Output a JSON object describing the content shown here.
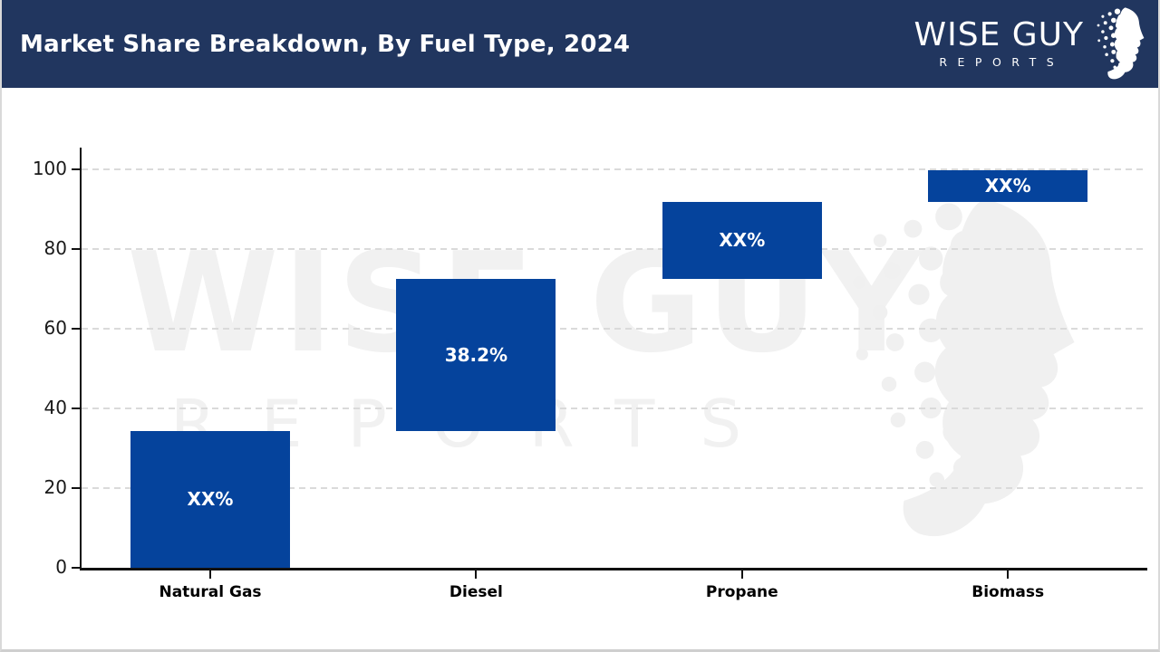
{
  "header": {
    "title": "Market Share Breakdown, By Fuel Type, 2024",
    "logo": {
      "line1": "WISE GUY",
      "line2": "REPORTS"
    }
  },
  "watermark": {
    "line1": "WISE GUY",
    "line2": "REPORTS"
  },
  "chart_data": {
    "type": "bar",
    "subtype": "waterfall",
    "title": "Market Share Breakdown, By Fuel Type, 2024",
    "categories": [
      "Natural Gas",
      "Diesel",
      "Propane",
      "Biomass"
    ],
    "segments": [
      {
        "category": "Natural Gas",
        "start": 0,
        "end": 34.4,
        "value": 34.4,
        "label": "XX%"
      },
      {
        "category": "Diesel",
        "start": 34.4,
        "end": 72.6,
        "value": 38.2,
        "label": "38.2%"
      },
      {
        "category": "Propane",
        "start": 72.6,
        "end": 91.9,
        "value": 19.3,
        "label": "XX%"
      },
      {
        "category": "Biomass",
        "start": 91.9,
        "end": 99.7,
        "value": 7.8,
        "label": "XX%"
      }
    ],
    "xlabel": "",
    "ylabel": "",
    "ylim": [
      0,
      105
    ],
    "yticks": [
      0,
      20,
      40,
      60,
      80,
      100
    ],
    "grid": "horizontal-dashed",
    "legend": "none",
    "bar_color": "#05439c",
    "bar_label_color": "#ffffff"
  },
  "colors": {
    "header_bg": "#21365f",
    "bar": "#05439c",
    "watermark": "#f1f1f1",
    "gridline": "#dadada",
    "axis": "#111111"
  }
}
